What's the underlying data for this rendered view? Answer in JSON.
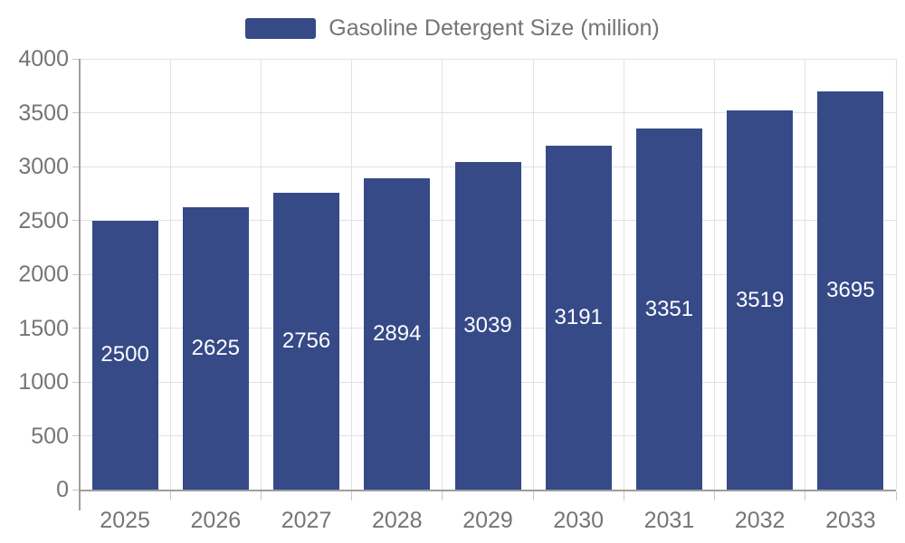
{
  "chart_data": {
    "type": "bar",
    "title": "Gasoline Detergent Size (million)",
    "legend_position": "top",
    "categories": [
      "2025",
      "2026",
      "2027",
      "2028",
      "2029",
      "2030",
      "2031",
      "2032",
      "2033"
    ],
    "values": [
      2500,
      2625,
      2756,
      2894,
      3039,
      3191,
      3351,
      3519,
      3695
    ],
    "series": [
      {
        "name": "Gasoline Detergent Size (million)",
        "values": [
          2500,
          2625,
          2756,
          2894,
          3039,
          3191,
          3351,
          3519,
          3695
        ]
      }
    ],
    "xlabel": "",
    "ylabel": "",
    "ylim": [
      0,
      4000
    ],
    "y_ticks": [
      0,
      500,
      1000,
      1500,
      2000,
      2500,
      3000,
      3500,
      4000
    ],
    "grid": true,
    "bar_label_color": "#ffffff",
    "colors": {
      "bar": "#364a88",
      "axis_text": "#757575",
      "axis_line": "#9e9e9e",
      "grid_line": "#e2e2e6",
      "tick": "#c8c8cc",
      "background": "#ffffff"
    }
  }
}
